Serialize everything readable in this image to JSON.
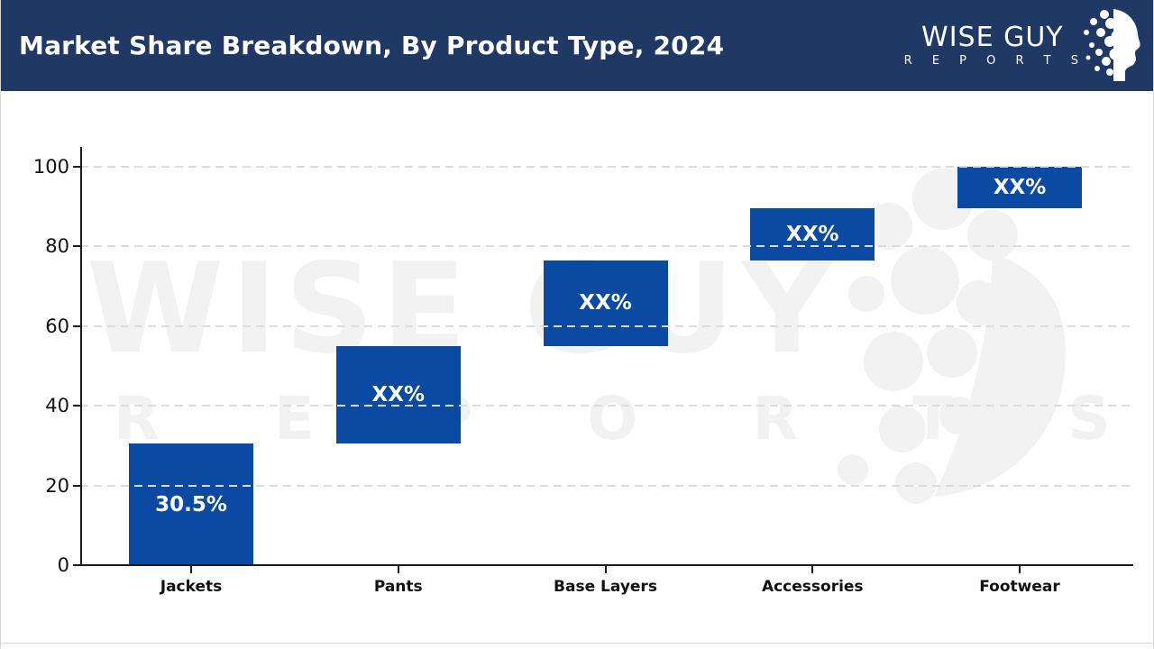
{
  "header": {
    "title": "Market Share Breakdown, By Product Type, 2024",
    "bg_color": "#1f3864",
    "logo": {
      "line1": "WISE GUY",
      "line2": "REPORTS"
    }
  },
  "watermark": {
    "line1": "WISE GUY",
    "line2": "REPORTS"
  },
  "chart_data": {
    "type": "bar",
    "subtype": "waterfall",
    "title": "Market Share Breakdown, By Product Type, 2024",
    "categories": [
      "Jackets",
      "Pants",
      "Base Layers",
      "Accessories",
      "Footwear"
    ],
    "segments": [
      {
        "category": "Jackets",
        "start": 0,
        "end": 30.5,
        "label": "30.5%"
      },
      {
        "category": "Pants",
        "start": 30.5,
        "end": 55,
        "label": "XX%"
      },
      {
        "category": "Base Layers",
        "start": 55,
        "end": 76.5,
        "label": "XX%"
      },
      {
        "category": "Accessories",
        "start": 76.5,
        "end": 89.5,
        "label": "XX%"
      },
      {
        "category": "Footwear",
        "start": 89.5,
        "end": 100,
        "label": "XX%"
      }
    ],
    "displayed_labels": [
      "30.5%",
      "XX%",
      "XX%",
      "XX%",
      "XX%"
    ],
    "yticks": [
      0,
      20,
      40,
      60,
      80,
      100
    ],
    "ylim": [
      0,
      105
    ],
    "xlabel": "",
    "ylabel": "",
    "grid": "dashed-horizontal-over-bars",
    "legend": "none",
    "bar_color": "#0b4aa2",
    "bar_label_color": "#ffffff",
    "axis_color": "#1a1a1a",
    "grid_color": "#dcdcdc"
  }
}
